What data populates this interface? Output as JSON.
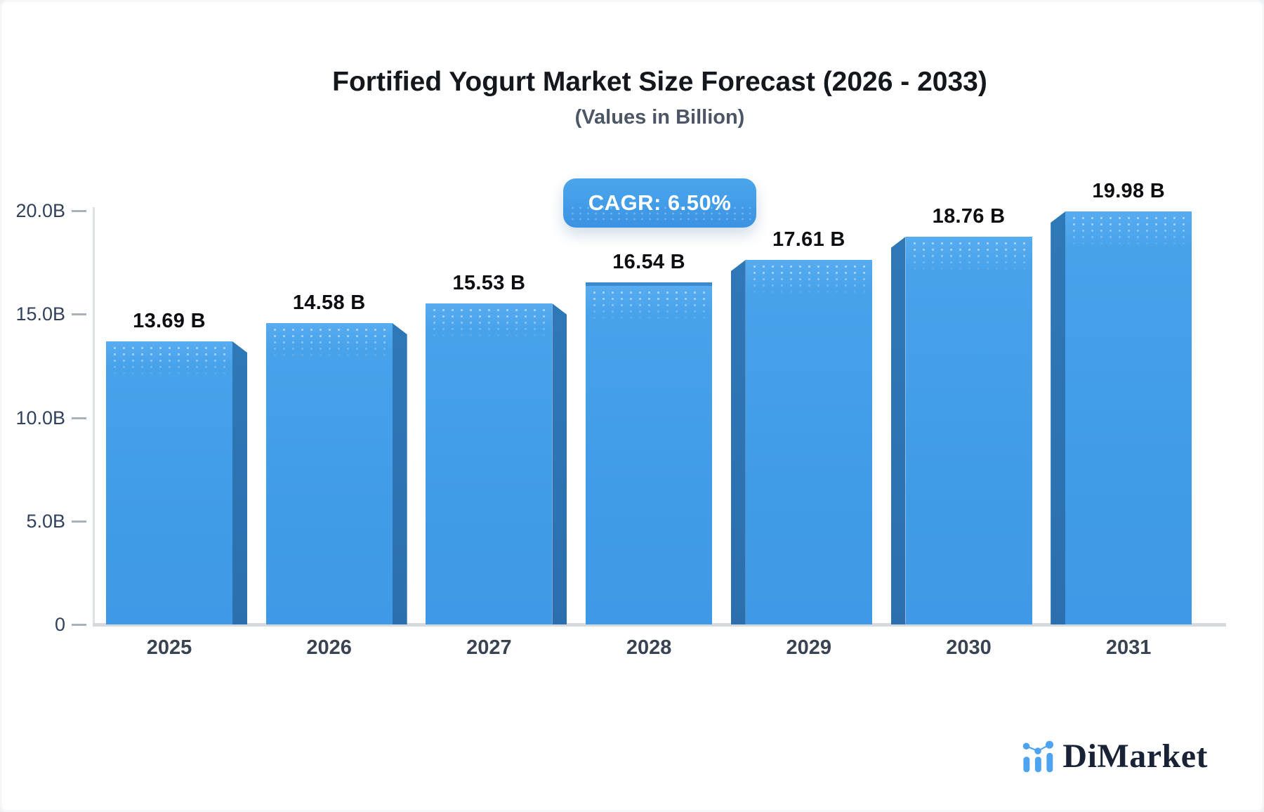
{
  "chart_data": {
    "type": "bar",
    "title": "Fortified Yogurt Market Size Forecast (2026 - 2033)",
    "subtitle": "(Values in Billion)",
    "annotation": "CAGR: 6.50%",
    "categories": [
      "2025",
      "2026",
      "2027",
      "2028",
      "2029",
      "2030",
      "2031"
    ],
    "values": [
      13.69,
      14.58,
      15.53,
      16.54,
      17.61,
      18.76,
      19.98
    ],
    "value_labels": [
      "13.69 B",
      "14.58 B",
      "15.53 B",
      "16.54 B",
      "17.61 B",
      "18.76 B",
      "19.98 B"
    ],
    "unit": "Billion",
    "ylim": [
      0,
      20
    ],
    "y_ticks": [
      {
        "label": "0",
        "value": 0
      },
      {
        "label": "5.0B",
        "value": 5
      },
      {
        "label": "10.0B",
        "value": 10
      },
      {
        "label": "15.0B",
        "value": 15
      },
      {
        "label": "20.0B",
        "value": 20
      }
    ],
    "grid": false,
    "legend": false,
    "colors": {
      "bar_face": "#45a0e8",
      "bar_side": "#2d73b2",
      "bar_top_border": "#3d89cf",
      "axis_line": "#d6d9de",
      "tick_text": "#32415c",
      "value_text": "#0c0e11",
      "badge_bg": "#3f97e6",
      "badge_text": "#ffffff"
    }
  },
  "branding": {
    "name": "DiMarket",
    "icon": "mini-bar-chart-icon",
    "icon_color": "#4da3f0",
    "text_color": "#1a2238"
  }
}
